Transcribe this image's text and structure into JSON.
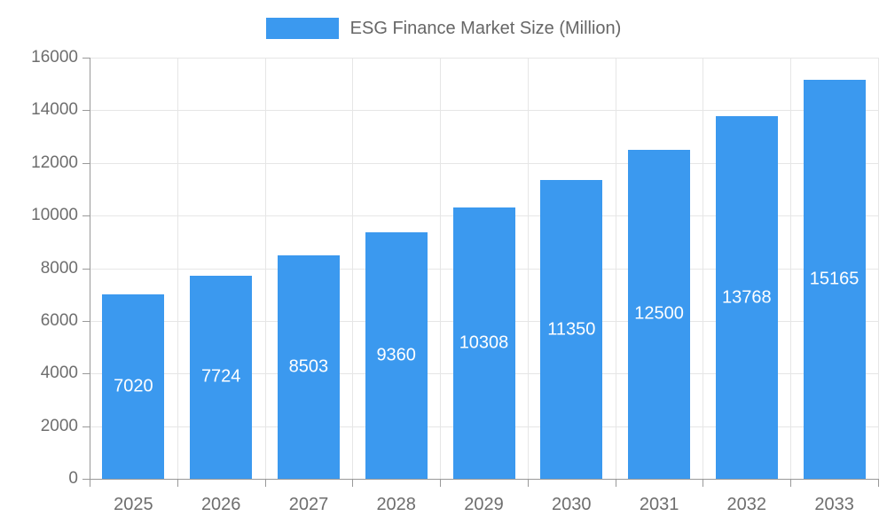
{
  "legend": {
    "label": "ESG Finance Market Size (Million)"
  },
  "colors": {
    "bar": "#3b99ef",
    "axis_line": "#999999",
    "grid_line": "#e6e6e6",
    "axis_tick_label": "#6e6e6e",
    "legend_text": "#666666",
    "value_label": "#ffffff",
    "background": "#ffffff"
  },
  "chart_data": {
    "type": "bar",
    "title": "ESG Finance Market Size (Million)",
    "categories": [
      "2025",
      "2026",
      "2027",
      "2028",
      "2029",
      "2030",
      "2031",
      "2032",
      "2033"
    ],
    "values": [
      7020,
      7724,
      8503,
      9360,
      10308,
      11350,
      12500,
      13768,
      15165
    ],
    "series_name": "ESG Finance Market Size (Million)",
    "xlabel": "",
    "ylabel": "",
    "ylim": [
      0,
      16000
    ],
    "ytick_interval": 2000,
    "ytick_labels": [
      "0",
      "2000",
      "4000",
      "6000",
      "8000",
      "10000",
      "12000",
      "14000",
      "16000"
    ],
    "grid": "on",
    "legend_position": "top-center",
    "value_label_position": "inside-center"
  }
}
